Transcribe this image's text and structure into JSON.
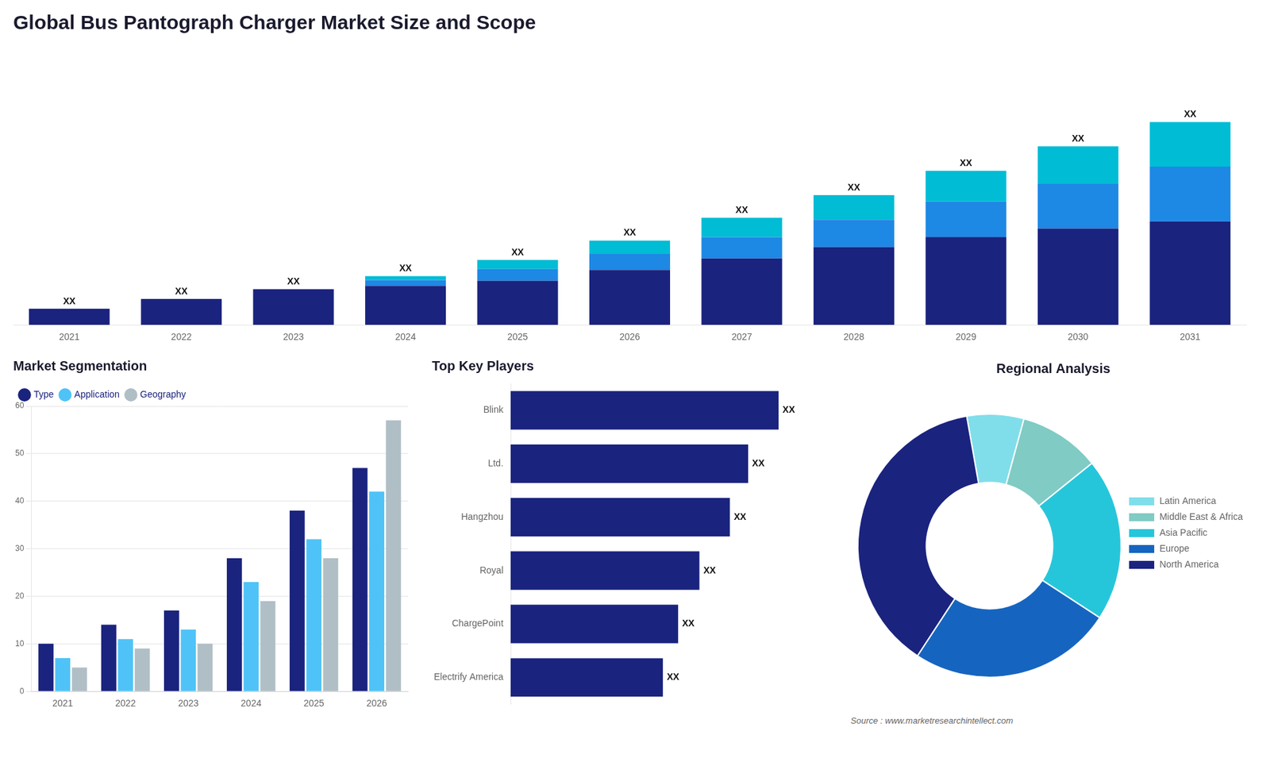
{
  "chart_data": [
    {
      "type": "bar",
      "title": "Global Bus Pantograph Charger Market Size and Scope",
      "categories": [
        "2021",
        "2022",
        "2023",
        "2024",
        "2025",
        "2026",
        "2027",
        "2028",
        "2029",
        "2030",
        "2031"
      ],
      "stacked": true,
      "series": [
        {
          "color": "#1a237e",
          "values": [
            1.0,
            1.6,
            2.2,
            2.4,
            2.72,
            3.38,
            4.092,
            4.8,
            5.415,
            5.94,
            6.375
          ]
        },
        {
          "color": "#1e88e5",
          "values": [
            0,
            0,
            0,
            0.36,
            0.72,
            0.988,
            1.32,
            1.68,
            2.185,
            2.75,
            3.375
          ]
        },
        {
          "color": "#00bcd4",
          "values": [
            0,
            0,
            0,
            0.24,
            0.56,
            0.832,
            1.188,
            1.52,
            1.9,
            2.31,
            2.75
          ],
          "value_labels": [
            "XX",
            "XX",
            "XX",
            "XX",
            "XX",
            "XX",
            "XX",
            "XX",
            "XX",
            "XX",
            "XX"
          ]
        }
      ],
      "ylim": [
        0,
        17.25
      ],
      "data_labels": true,
      "tick_labels": "x"
    },
    {
      "type": "bar",
      "title": "Market Segmentation",
      "categories": [
        "2021",
        "2022",
        "2023",
        "2024",
        "2025",
        "2026"
      ],
      "series": [
        {
          "name": "Type",
          "color": "#1a237e",
          "values": [
            10,
            14,
            17,
            28,
            38,
            47
          ]
        },
        {
          "name": "Application",
          "color": "#4fc3f7",
          "values": [
            7,
            11,
            13,
            23,
            32,
            42
          ]
        },
        {
          "name": "Geography",
          "color": "#b0bec5",
          "values": [
            5,
            9,
            10,
            19,
            28,
            57
          ]
        }
      ],
      "ylim": [
        0,
        60
      ],
      "yticks": [
        0,
        10,
        20,
        30,
        40,
        50,
        60
      ],
      "grid": true,
      "legend": "upper left"
    },
    {
      "type": "bar",
      "title": "Top Key Players",
      "orientation": "horizontal",
      "categories": [
        "Blink",
        "Ltd.",
        "Hangzhou",
        "Royal",
        "ChargePoint",
        "Electrify America"
      ],
      "values": [
        88,
        78,
        72,
        62,
        55,
        50
      ],
      "value_labels": [
        "XX",
        "XX",
        "XX",
        "XX",
        "XX",
        "XX"
      ],
      "color": "#1a237e",
      "xlim": [
        0,
        103.84
      ],
      "data_labels": true,
      "tick_labels": "y"
    },
    {
      "type": "doughnut",
      "title": "Regional Analysis",
      "categories": [
        "Latin America",
        "Middle East &\nAfrica",
        "Asia Pacific",
        "Europe",
        "North America"
      ],
      "values": [
        7,
        10,
        20,
        25,
        38
      ],
      "colors": [
        "#80deea",
        "#80cbc4",
        "#26c6da",
        "#1565c0",
        "#1a237e"
      ],
      "legend": "right",
      "annotations": [
        "Source : www.marketresearchintellect.com"
      ]
    }
  ]
}
